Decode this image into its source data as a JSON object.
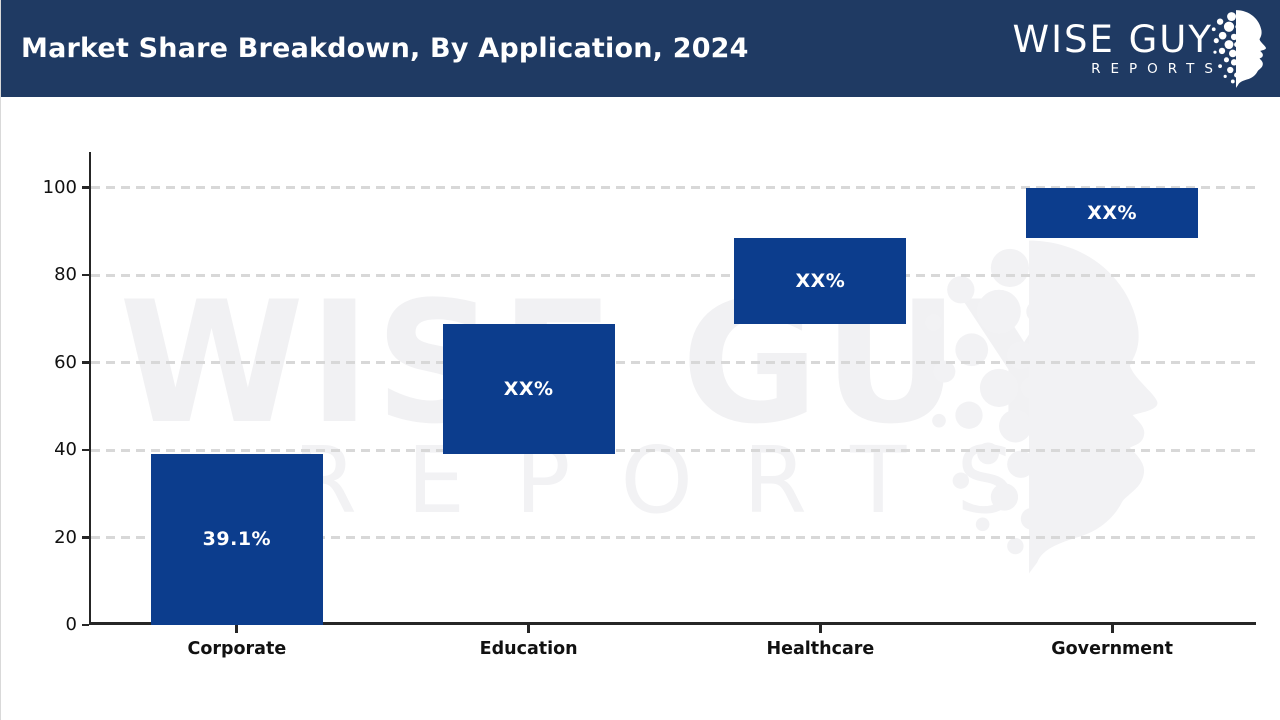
{
  "header": {
    "title": "Market Share Breakdown, By Application, 2024",
    "bg_color": "#1f3a63",
    "logo": {
      "line1": "WISE GUY",
      "line2": "REPORTS"
    }
  },
  "watermark": {
    "line1": "WISE GUY",
    "line2": "REPORTS"
  },
  "chart_data": {
    "type": "bar",
    "subtype": "waterfall",
    "title": "Market Share Breakdown, By Application, 2024",
    "categories": [
      "Corporate",
      "Education",
      "Healthcare",
      "Government"
    ],
    "series": [
      {
        "name": "Market Share %",
        "segments": [
          {
            "category": "Corporate",
            "start": 0,
            "end": 39.1,
            "label": "39.1%"
          },
          {
            "category": "Education",
            "start": 39.1,
            "end": 68.8,
            "label": "XX%"
          },
          {
            "category": "Healthcare",
            "start": 68.8,
            "end": 88.5,
            "label": "XX%"
          },
          {
            "category": "Government",
            "start": 88.5,
            "end": 100,
            "label": "XX%"
          }
        ]
      }
    ],
    "xlabel": "",
    "ylabel": "",
    "ylim": [
      0,
      100
    ],
    "yticks": [
      0,
      20,
      40,
      60,
      80,
      100
    ],
    "grid": "horizontal-dashed",
    "legend": "none",
    "bar_color": "#0c3d8d",
    "bar_label_color": "#ffffff",
    "grid_color": "#d8d8d8",
    "axis_color": "#262626"
  }
}
